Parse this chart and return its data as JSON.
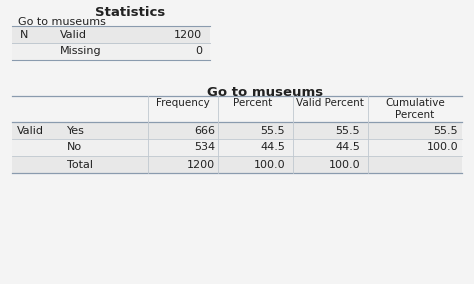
{
  "title1": "Statistics",
  "subtitle1": "Go to museums",
  "stats_n_label": "N",
  "stats_rows": [
    {
      "label": "Valid",
      "value": "1200"
    },
    {
      "label": "Missing",
      "value": "0"
    }
  ],
  "title2": "Go to museums",
  "col_headers": [
    "Frequency",
    "Percent",
    "Valid Percent",
    "Cumulative\nPercent"
  ],
  "data_rows": [
    {
      "group": "Valid",
      "label": "Yes",
      "vals": [
        "666",
        "55.5",
        "55.5",
        "55.5"
      ]
    },
    {
      "group": "",
      "label": "No",
      "vals": [
        "534",
        "44.5",
        "44.5",
        "100.0"
      ]
    },
    {
      "group": "",
      "label": "Total",
      "vals": [
        "1200",
        "100.0",
        "100.0",
        ""
      ]
    }
  ],
  "bg_color": "#f4f4f4",
  "white": "#ffffff",
  "cell_gray": "#e8e8e8",
  "cell_light": "#f0f0f0",
  "border_dark": "#8a9bae",
  "border_light": "#c0c8d0",
  "text_dark": "#222222",
  "text_blue": "#5b7fa6",
  "font_size": 8,
  "title_font_size": 9.5
}
